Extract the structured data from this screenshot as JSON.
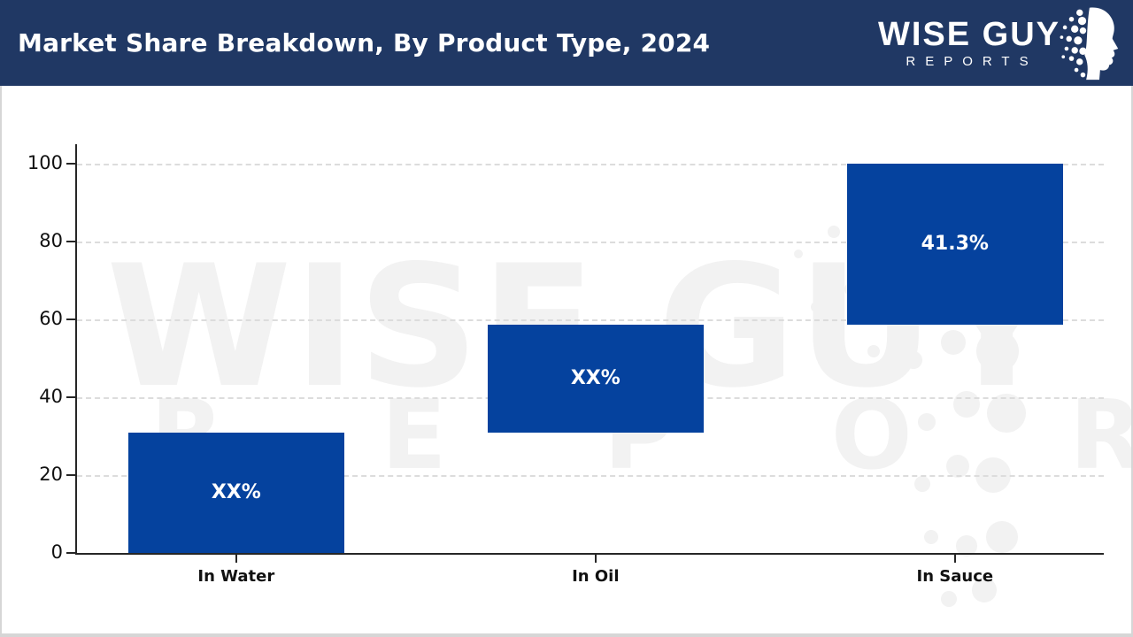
{
  "header": {
    "title": "Market Share Breakdown, By Product Type, 2024",
    "logo": {
      "line1": "WISE GUY",
      "line2": "REPORTS"
    }
  },
  "watermark": {
    "line1": "WISE GUY",
    "line2": "R E P O R T S"
  },
  "colors": {
    "header_bg": "#203864",
    "bar_fill": "#05429e",
    "bar_label_text": "#ffffff",
    "gridline": "#dcdcdc",
    "axis": "#262626",
    "tick_label": "#111111",
    "watermark": "#f2f2f2",
    "page_border": "#d6d6d6"
  },
  "chart_data": {
    "type": "bar",
    "subtype": "floating-waterfall",
    "title": "Market Share Breakdown, By Product Type, 2024",
    "categories": [
      "In Water",
      "In Oil",
      "In Sauce"
    ],
    "bars": [
      {
        "category": "In Water",
        "start": 0,
        "end": 31,
        "label": "XX%"
      },
      {
        "category": "In Oil",
        "start": 31,
        "end": 58.7,
        "label": "XX%"
      },
      {
        "category": "In Sauce",
        "start": 58.7,
        "end": 100,
        "label": "41.3%"
      }
    ],
    "segment_sizes": [
      31,
      27.7,
      41.3
    ],
    "xlabel": "",
    "ylabel": "",
    "yticks": [
      0,
      20,
      40,
      60,
      80,
      100
    ],
    "ylim": [
      0,
      105
    ],
    "grid": "horizontal-dashed",
    "legend": "none"
  }
}
